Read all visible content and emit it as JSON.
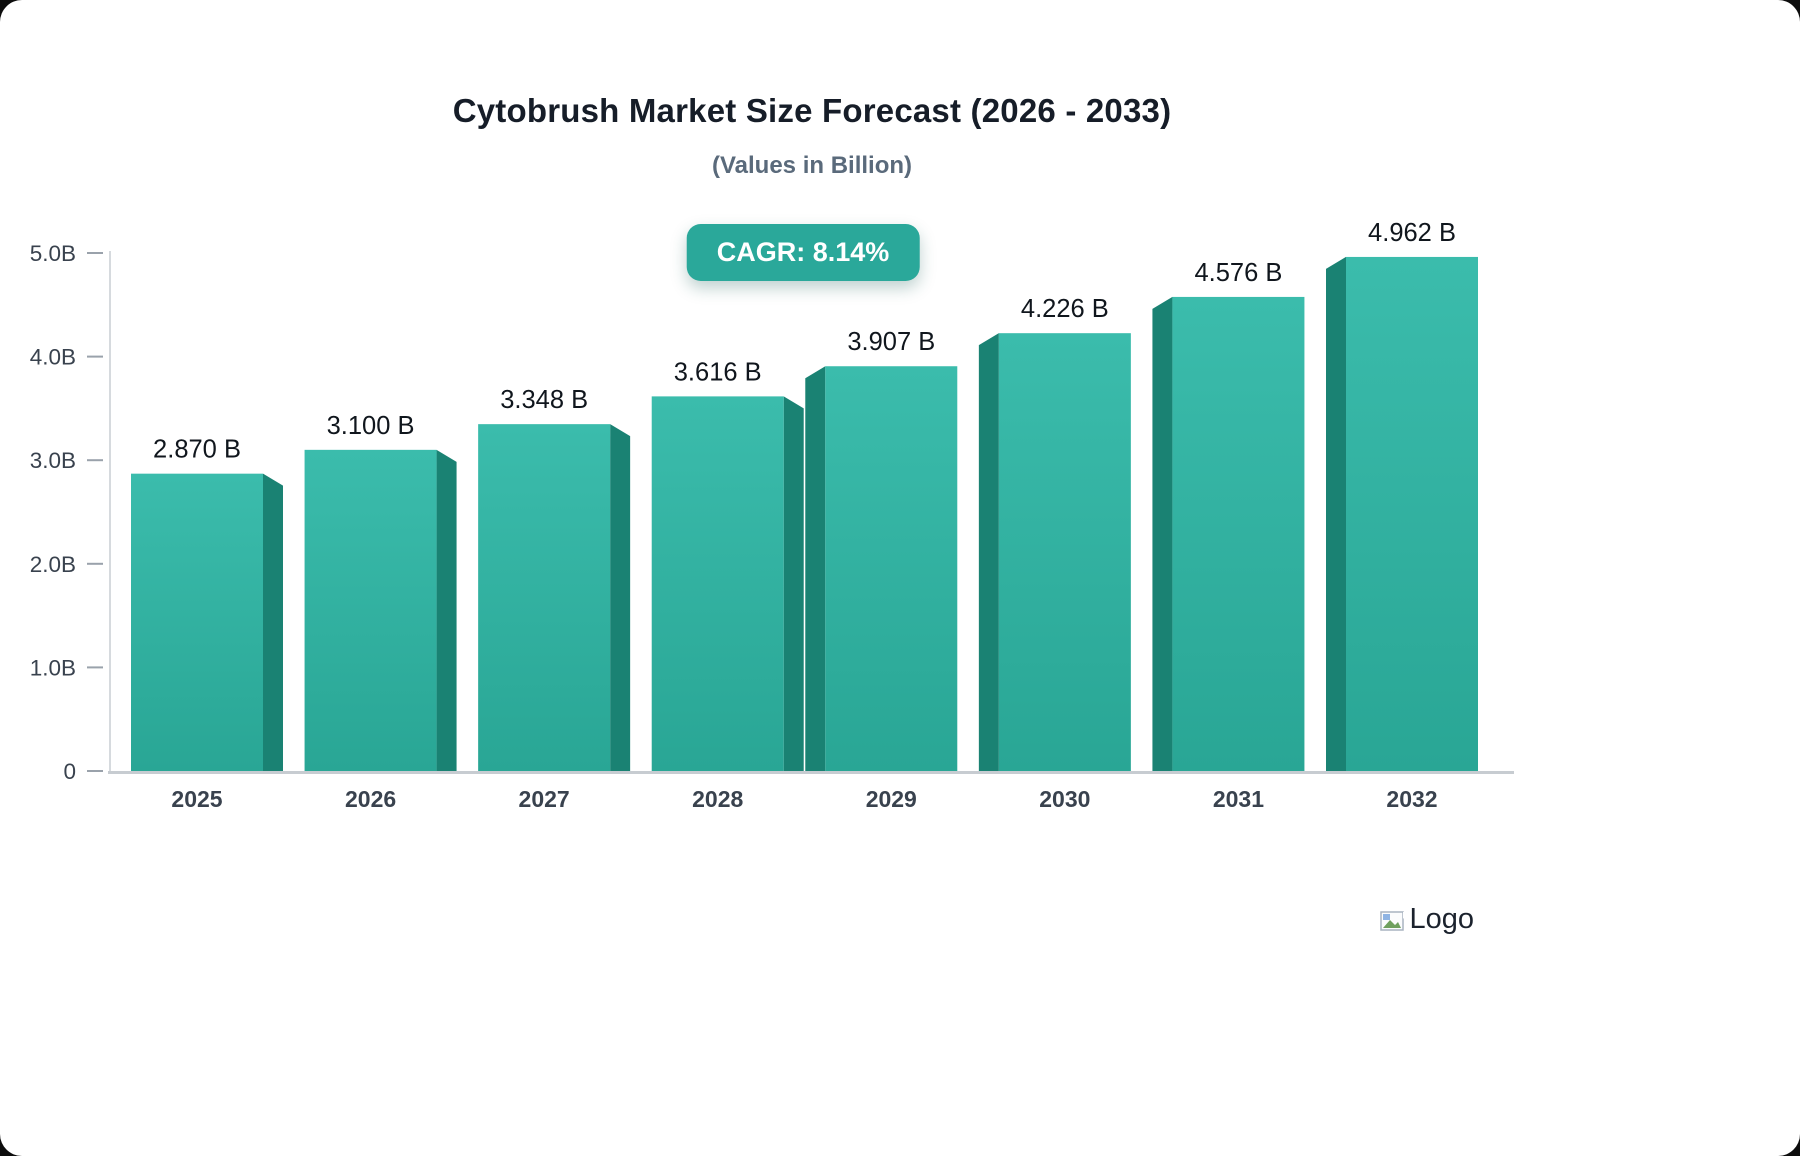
{
  "page": {
    "background": "#ffffff"
  },
  "header": {
    "title": "Cytobrush Market Size Forecast (2026 - 2033)",
    "subtitle": "(Values in Billion)"
  },
  "badge": {
    "label": "CAGR: 8.14%",
    "bg": "#2aa89a",
    "text_color": "#ffffff"
  },
  "logo": {
    "text": "Logo",
    "icon": "broken-image-icon"
  },
  "chart_data": {
    "type": "bar",
    "title": "Cytobrush Market Size Forecast (2026 - 2033)",
    "subtitle": "(Values in Billion)",
    "cagr_label": "CAGR: 8.14%",
    "categories": [
      "2025",
      "2026",
      "2027",
      "2028",
      "2029",
      "2030",
      "2031",
      "2032"
    ],
    "values": [
      2.87,
      3.1,
      3.348,
      3.616,
      3.907,
      4.226,
      4.576,
      4.962
    ],
    "value_labels": [
      "2.870 B",
      "3.100 B",
      "3.348 B",
      "3.616 B",
      "3.907 B",
      "4.226 B",
      "4.576 B",
      "4.962 B"
    ],
    "xlabel": "",
    "ylabel": "",
    "ylim": [
      0,
      5
    ],
    "ytick_labels": [
      "0",
      "1.0B",
      "2.0B",
      "3.0B",
      "4.0B",
      "5.0B"
    ],
    "grid": false,
    "legend": "none",
    "style": "pseudo-3d-bars",
    "bar_color_top": "#3bbcac",
    "bar_color_bottom": "#29a695",
    "bar_side_color": "#1a8273",
    "axis_color": "#c7ccd1",
    "tick_color": "#9aa2ab",
    "label_color": "#39424e",
    "value_label_color": "#10161d"
  }
}
